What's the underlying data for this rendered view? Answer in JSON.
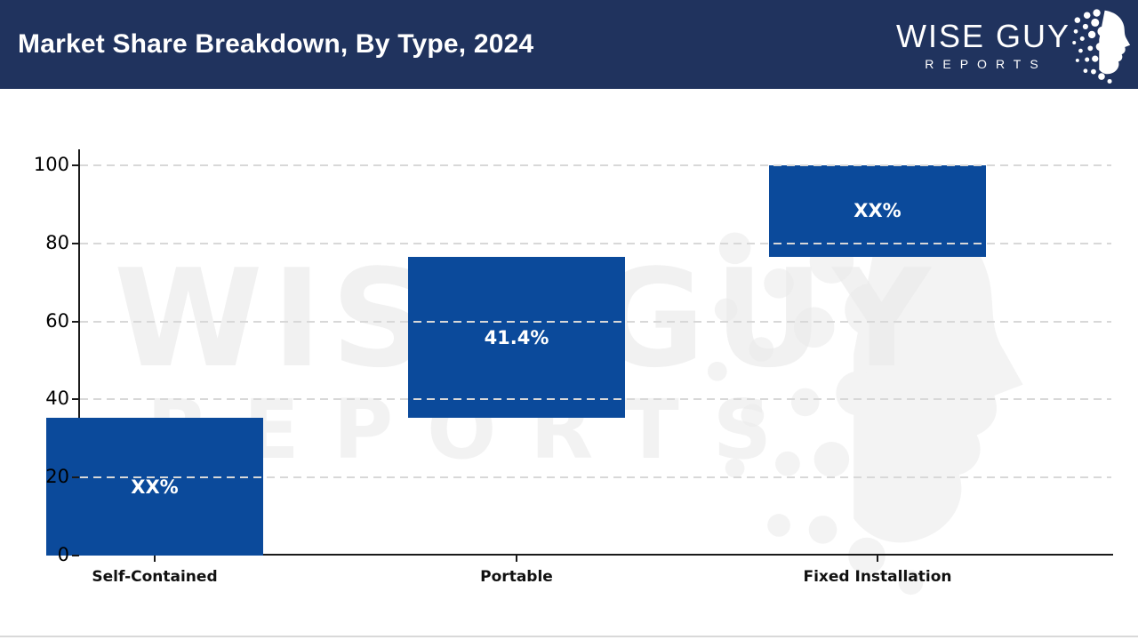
{
  "header": {
    "title": "Market Share Breakdown, By Type, 2024",
    "logo": {
      "line1": "WISE GUY",
      "line2": "REPORTS"
    }
  },
  "watermark": {
    "line1": "WISE GUY",
    "line2": "REPORTS"
  },
  "chart_data": {
    "type": "bar",
    "subtype": "waterfall",
    "title": "Market Share Breakdown, By Type, 2024",
    "categories": [
      "Self-Contained",
      "Portable",
      "Fixed Installation"
    ],
    "segments": [
      {
        "category": "Self-Contained",
        "start": 0,
        "end": 35.2,
        "label": "XX%"
      },
      {
        "category": "Portable",
        "start": 35.2,
        "end": 76.6,
        "label": "41.4%",
        "value": 41.4
      },
      {
        "category": "Fixed Installation",
        "start": 76.6,
        "end": 100,
        "label": "XX%"
      }
    ],
    "ylim": [
      0,
      100
    ],
    "yticks": [
      0,
      20,
      40,
      60,
      80,
      100
    ],
    "grid": "horizontal-dashed",
    "gridlines_above_bars": true,
    "legend": "none",
    "colors": {
      "bar": "#0b4a9b",
      "header_bg": "#20335e",
      "axis": "#1a1a1a",
      "gridline": "#d8d8d8",
      "bar_label_text": "#ffffff",
      "tick_text": "#000000",
      "watermark": "#f1f1f1"
    }
  }
}
